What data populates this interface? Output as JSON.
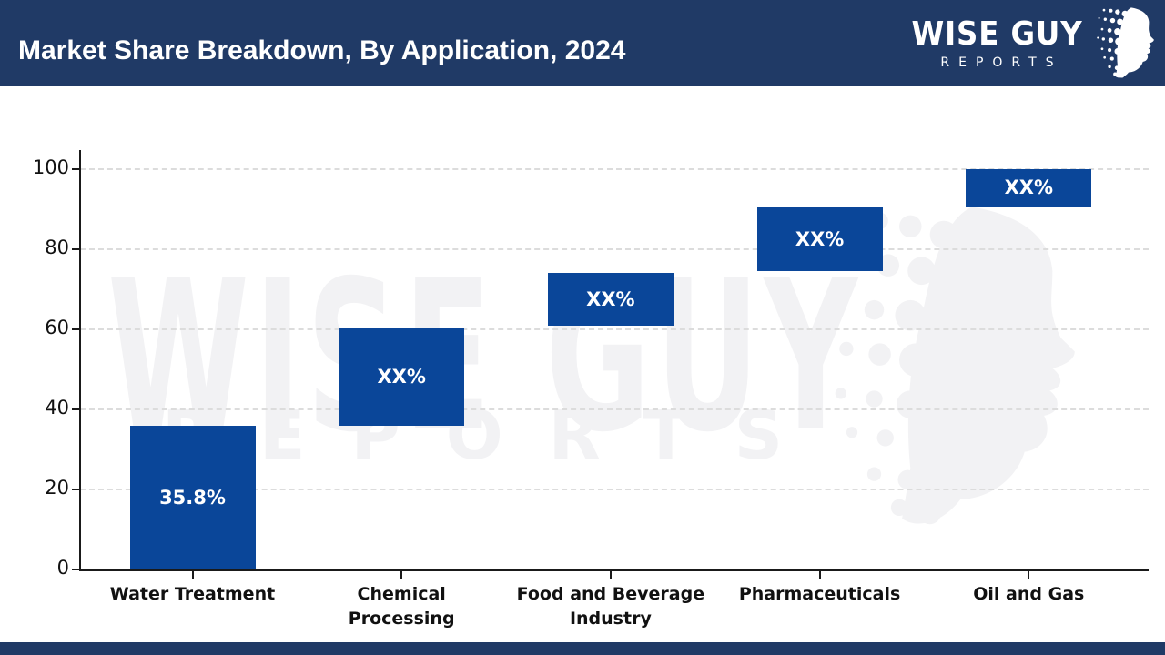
{
  "header": {
    "title": "Market Share Breakdown, By Application, 2024",
    "logo": {
      "line1": "WISE GUY",
      "line2": "REPORTS"
    }
  },
  "watermark": {
    "line1": "WISE GUY",
    "line2": "REPORTS"
  },
  "theme": {
    "header_bg": "#203A66",
    "footer_bg": "#203A66",
    "bar_color": "#0A4699",
    "bar_label_color": "#FFFFFF",
    "watermark_color": "#F2F2F4",
    "grid_color": "#DCDCDC",
    "axis_color": "#1A1A1A",
    "tick_text_color": "#111111"
  },
  "chart_data": {
    "type": "bar",
    "subtype": "waterfall",
    "title": "Market Share Breakdown, By Application, 2024",
    "xlabel": "",
    "ylabel": "",
    "ylim": [
      0,
      105
    ],
    "yticks": [
      0,
      20,
      40,
      60,
      80,
      100
    ],
    "grid": "horizontal-dashed",
    "legend": "none",
    "bar_color": "#0A4699",
    "categories": [
      "Water Treatment",
      "Chemical Processing",
      "Food and Beverage Industry",
      "Pharmaceuticals",
      "Oil and Gas"
    ],
    "bars": [
      {
        "category": "Water Treatment",
        "label_lines": [
          "Water Treatment"
        ],
        "start": 0,
        "end": 35.8,
        "label": "35.8%"
      },
      {
        "category": "Chemical Processing",
        "label_lines": [
          "Chemical",
          "Processing"
        ],
        "start": 36,
        "end": 60.5,
        "label": "XX%"
      },
      {
        "category": "Food and Beverage Industry",
        "label_lines": [
          "Food and Beverage",
          "Industry"
        ],
        "start": 61,
        "end": 74,
        "label": "XX%"
      },
      {
        "category": "Pharmaceuticals",
        "label_lines": [
          "Pharmaceuticals"
        ],
        "start": 74.5,
        "end": 90.7,
        "label": "XX%"
      },
      {
        "category": "Oil and Gas",
        "label_lines": [
          "Oil and Gas"
        ],
        "start": 90.7,
        "end": 100,
        "label": "XX%"
      }
    ]
  }
}
